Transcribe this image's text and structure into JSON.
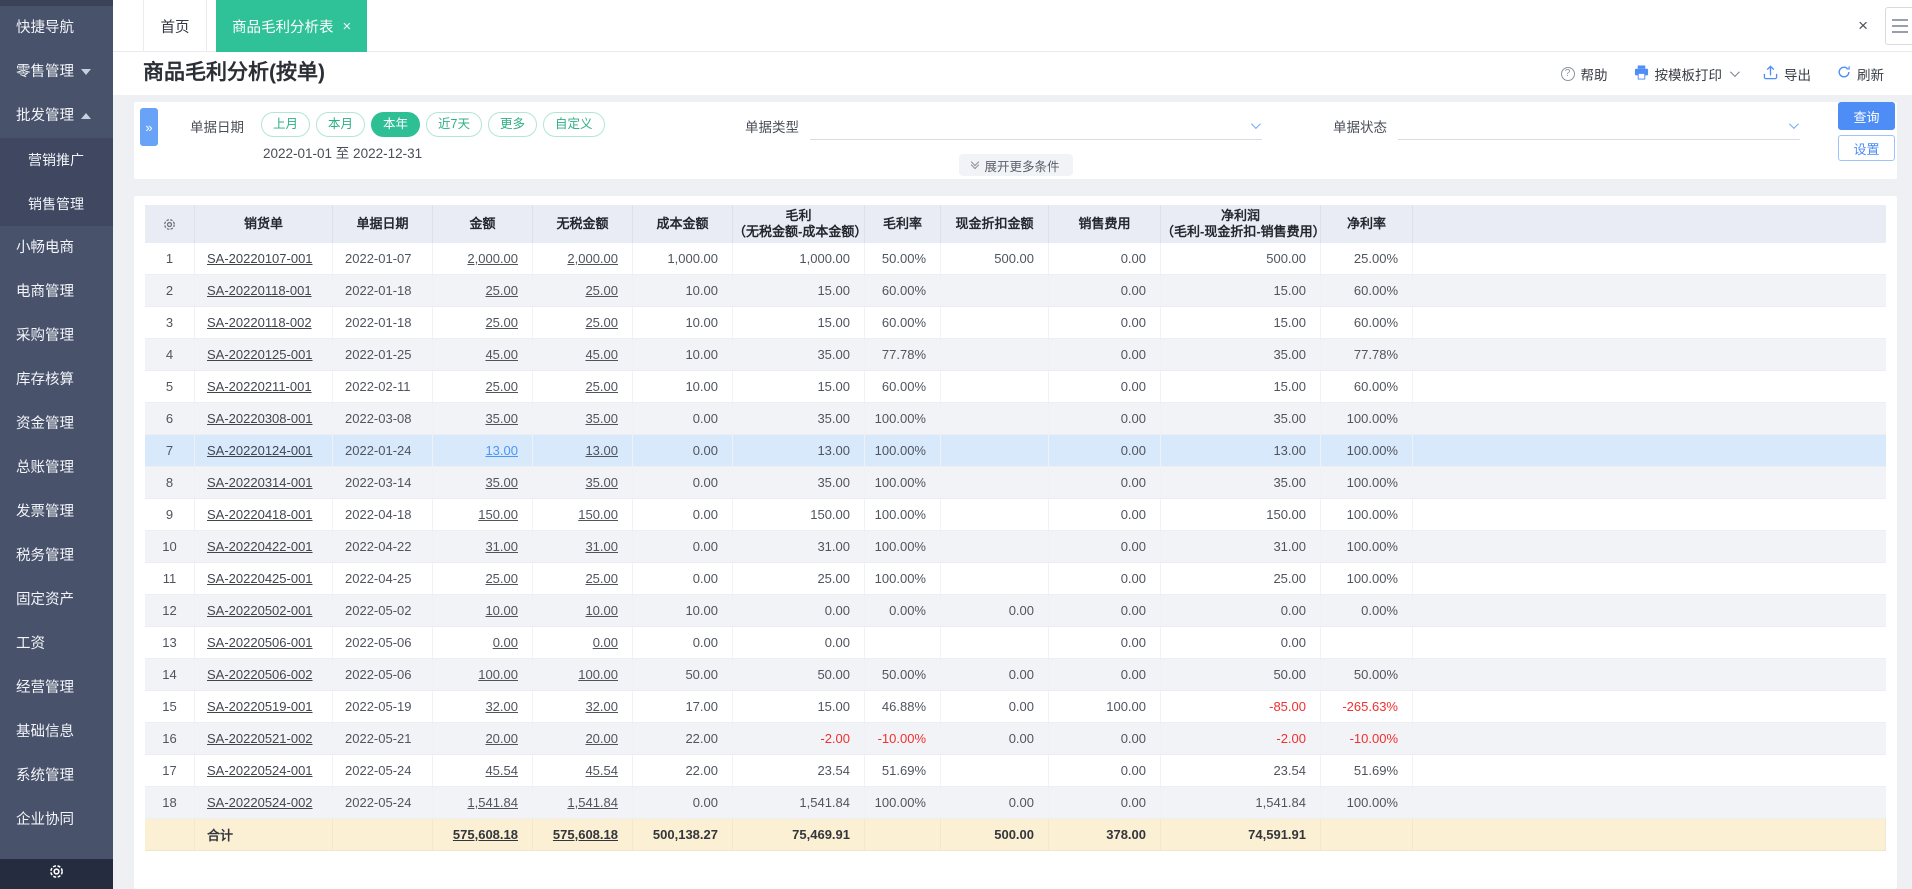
{
  "colors": {
    "accent_blue": "#4e8df6",
    "tab_active_green": "#2fc198",
    "pill_green": "#2fbf95",
    "negative_red": "#f1302f",
    "selected_row_blue": "#d9e9fc",
    "total_row_cream": "#fbf0d4",
    "sidebar_bg": "#49526b"
  },
  "sidebar": {
    "items": [
      {
        "label": "快捷导航",
        "type": "item"
      },
      {
        "label": "零售管理",
        "type": "item",
        "arrow": "down"
      },
      {
        "label": "批发管理",
        "type": "item",
        "arrow": "up"
      },
      {
        "label": "营销推广",
        "type": "sub"
      },
      {
        "label": "销售管理",
        "type": "sub"
      },
      {
        "label": "小畅电商",
        "type": "item"
      },
      {
        "label": "电商管理",
        "type": "item"
      },
      {
        "label": "采购管理",
        "type": "item"
      },
      {
        "label": "库存核算",
        "type": "item"
      },
      {
        "label": "资金管理",
        "type": "item"
      },
      {
        "label": "总账管理",
        "type": "item"
      },
      {
        "label": "发票管理",
        "type": "item"
      },
      {
        "label": "税务管理",
        "type": "item"
      },
      {
        "label": "固定资产",
        "type": "item"
      },
      {
        "label": "工资",
        "type": "item"
      },
      {
        "label": "经营管理",
        "type": "item"
      },
      {
        "label": "基础信息",
        "type": "item"
      },
      {
        "label": "系统管理",
        "type": "item"
      },
      {
        "label": "企业协同",
        "type": "item"
      }
    ]
  },
  "tabs": {
    "home": "首页",
    "active": "商品毛利分析表",
    "close": "×"
  },
  "page": {
    "title": "商品毛利分析(按单)"
  },
  "toolbar": {
    "help": "帮助",
    "print": "按模板打印",
    "export": "导出",
    "refresh": "刷新"
  },
  "filters": {
    "date_label": "单据日期",
    "date_options": [
      "上月",
      "本月",
      "本年",
      "近7天",
      "更多",
      "自定义"
    ],
    "date_selected": "本年",
    "date_range": "2022-01-01 至 2022-12-31",
    "type_label": "单据类型",
    "status_label": "单据状态",
    "expand_label": "展开更多条件",
    "search_button": "查询",
    "settings_button": "设置",
    "collapse_glyph": "»"
  },
  "table": {
    "columns": {
      "doc": "销货单",
      "date": "单据日期",
      "amount": "金额",
      "tax_free": "无税金额",
      "cost": "成本金额",
      "gross": "毛利\n（无税金额-成本金额）",
      "gross_rate": "毛利率",
      "cash_discount": "现金折扣金额",
      "selling_exp": "销售费用",
      "net": "净利润\n（毛利-现金折扣-销售费用）",
      "net_rate": "净利率"
    },
    "rows": [
      {
        "no": 1,
        "doc": "SA-20220107-001",
        "date": "2022-01-07",
        "amount": "2,000.00",
        "tax_free": "2,000.00",
        "cost": "1,000.00",
        "gross": "1,000.00",
        "gross_rate": "50.00%",
        "cash_discount": "500.00",
        "selling_exp": "0.00",
        "net": "500.00",
        "net_rate": "25.00%"
      },
      {
        "no": 2,
        "doc": "SA-20220118-001",
        "date": "2022-01-18",
        "amount": "25.00",
        "tax_free": "25.00",
        "cost": "10.00",
        "gross": "15.00",
        "gross_rate": "60.00%",
        "cash_discount": "",
        "selling_exp": "0.00",
        "net": "15.00",
        "net_rate": "60.00%"
      },
      {
        "no": 3,
        "doc": "SA-20220118-002",
        "date": "2022-01-18",
        "amount": "25.00",
        "tax_free": "25.00",
        "cost": "10.00",
        "gross": "15.00",
        "gross_rate": "60.00%",
        "cash_discount": "",
        "selling_exp": "0.00",
        "net": "15.00",
        "net_rate": "60.00%"
      },
      {
        "no": 4,
        "doc": "SA-20220125-001",
        "date": "2022-01-25",
        "amount": "45.00",
        "tax_free": "45.00",
        "cost": "10.00",
        "gross": "35.00",
        "gross_rate": "77.78%",
        "cash_discount": "",
        "selling_exp": "0.00",
        "net": "35.00",
        "net_rate": "77.78%"
      },
      {
        "no": 5,
        "doc": "SA-20220211-001",
        "date": "2022-02-11",
        "amount": "25.00",
        "tax_free": "25.00",
        "cost": "10.00",
        "gross": "15.00",
        "gross_rate": "60.00%",
        "cash_discount": "",
        "selling_exp": "0.00",
        "net": "15.00",
        "net_rate": "60.00%"
      },
      {
        "no": 6,
        "doc": "SA-20220308-001",
        "date": "2022-03-08",
        "amount": "35.00",
        "tax_free": "35.00",
        "cost": "0.00",
        "gross": "35.00",
        "gross_rate": "100.00%",
        "cash_discount": "",
        "selling_exp": "0.00",
        "net": "35.00",
        "net_rate": "100.00%"
      },
      {
        "no": 7,
        "doc": "SA-20220124-001",
        "date": "2022-01-24",
        "amount": "13.00",
        "tax_free": "13.00",
        "cost": "0.00",
        "gross": "13.00",
        "gross_rate": "100.00%",
        "cash_discount": "",
        "selling_exp": "0.00",
        "net": "13.00",
        "net_rate": "100.00%",
        "selected": true
      },
      {
        "no": 8,
        "doc": "SA-20220314-001",
        "date": "2022-03-14",
        "amount": "35.00",
        "tax_free": "35.00",
        "cost": "0.00",
        "gross": "35.00",
        "gross_rate": "100.00%",
        "cash_discount": "",
        "selling_exp": "0.00",
        "net": "35.00",
        "net_rate": "100.00%"
      },
      {
        "no": 9,
        "doc": "SA-20220418-001",
        "date": "2022-04-18",
        "amount": "150.00",
        "tax_free": "150.00",
        "cost": "0.00",
        "gross": "150.00",
        "gross_rate": "100.00%",
        "cash_discount": "",
        "selling_exp": "0.00",
        "net": "150.00",
        "net_rate": "100.00%"
      },
      {
        "no": 10,
        "doc": "SA-20220422-001",
        "date": "2022-04-22",
        "amount": "31.00",
        "tax_free": "31.00",
        "cost": "0.00",
        "gross": "31.00",
        "gross_rate": "100.00%",
        "cash_discount": "",
        "selling_exp": "0.00",
        "net": "31.00",
        "net_rate": "100.00%"
      },
      {
        "no": 11,
        "doc": "SA-20220425-001",
        "date": "2022-04-25",
        "amount": "25.00",
        "tax_free": "25.00",
        "cost": "0.00",
        "gross": "25.00",
        "gross_rate": "100.00%",
        "cash_discount": "",
        "selling_exp": "0.00",
        "net": "25.00",
        "net_rate": "100.00%"
      },
      {
        "no": 12,
        "doc": "SA-20220502-001",
        "date": "2022-05-02",
        "amount": "10.00",
        "tax_free": "10.00",
        "cost": "10.00",
        "gross": "0.00",
        "gross_rate": "0.00%",
        "cash_discount": "0.00",
        "selling_exp": "0.00",
        "net": "0.00",
        "net_rate": "0.00%"
      },
      {
        "no": 13,
        "doc": "SA-20220506-001",
        "date": "2022-05-06",
        "amount": "0.00",
        "tax_free": "0.00",
        "cost": "0.00",
        "gross": "0.00",
        "gross_rate": "",
        "cash_discount": "",
        "selling_exp": "0.00",
        "net": "0.00",
        "net_rate": ""
      },
      {
        "no": 14,
        "doc": "SA-20220506-002",
        "date": "2022-05-06",
        "amount": "100.00",
        "tax_free": "100.00",
        "cost": "50.00",
        "gross": "50.00",
        "gross_rate": "50.00%",
        "cash_discount": "0.00",
        "selling_exp": "0.00",
        "net": "50.00",
        "net_rate": "50.00%"
      },
      {
        "no": 15,
        "doc": "SA-20220519-001",
        "date": "2022-05-19",
        "amount": "32.00",
        "tax_free": "32.00",
        "cost": "17.00",
        "gross": "15.00",
        "gross_rate": "46.88%",
        "cash_discount": "0.00",
        "selling_exp": "100.00",
        "net": "-85.00",
        "net_rate": "-265.63%"
      },
      {
        "no": 16,
        "doc": "SA-20220521-002",
        "date": "2022-05-21",
        "amount": "20.00",
        "tax_free": "20.00",
        "cost": "22.00",
        "gross": "-2.00",
        "gross_rate": "-10.00%",
        "cash_discount": "0.00",
        "selling_exp": "0.00",
        "net": "-2.00",
        "net_rate": "-10.00%"
      },
      {
        "no": 17,
        "doc": "SA-20220524-001",
        "date": "2022-05-24",
        "amount": "45.54",
        "tax_free": "45.54",
        "cost": "22.00",
        "gross": "23.54",
        "gross_rate": "51.69%",
        "cash_discount": "",
        "selling_exp": "0.00",
        "net": "23.54",
        "net_rate": "51.69%"
      },
      {
        "no": 18,
        "doc": "SA-20220524-002",
        "date": "2022-05-24",
        "amount": "1,541.84",
        "tax_free": "1,541.84",
        "cost": "0.00",
        "gross": "1,541.84",
        "gross_rate": "100.00%",
        "cash_discount": "0.00",
        "selling_exp": "0.00",
        "net": "1,541.84",
        "net_rate": "100.00%"
      }
    ],
    "total": {
      "label": "合计",
      "date": "",
      "amount": "575,608.18",
      "tax_free": "575,608.18",
      "cost": "500,138.27",
      "gross": "75,469.91",
      "gross_rate": "",
      "cash_discount": "500.00",
      "selling_exp": "378.00",
      "net": "74,591.91",
      "net_rate": ""
    }
  }
}
